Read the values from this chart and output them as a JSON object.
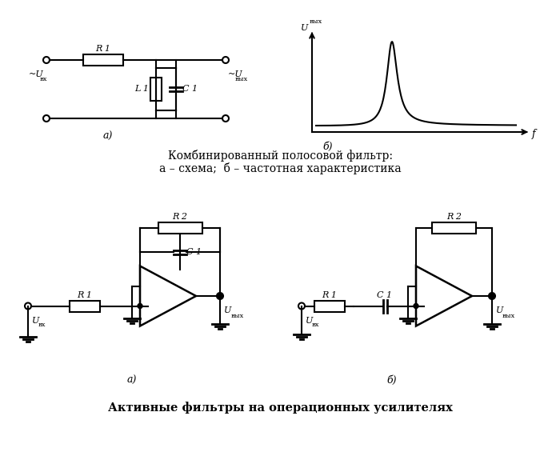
{
  "bg_color": "#ffffff",
  "title1": "Комбинированный полосовой фильтр:",
  "title1b": "а – схема;  б – частотная характеристика",
  "title2": "Активные фильтры на операционных усилителях",
  "fig_width": 7.0,
  "fig_height": 5.65
}
